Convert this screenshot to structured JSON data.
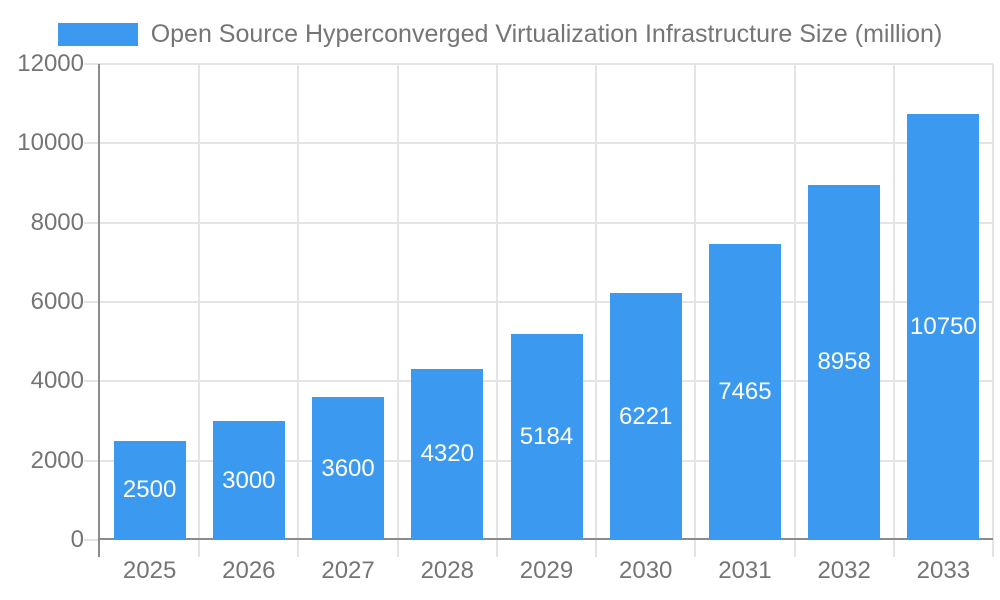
{
  "chart_data": {
    "type": "bar",
    "title": "Open Source Hyperconverged Virtualization Infrastructure Size (million)",
    "categories": [
      "2025",
      "2026",
      "2027",
      "2028",
      "2029",
      "2030",
      "2031",
      "2032",
      "2033"
    ],
    "values": [
      2500,
      3000,
      3600,
      4320,
      5184,
      6221,
      7465,
      8958,
      10750
    ],
    "xlabel": "",
    "ylabel": "",
    "ylim": [
      0,
      12000
    ],
    "yticks": [
      0,
      2000,
      4000,
      6000,
      8000,
      10000,
      12000
    ],
    "grid": true,
    "legend_position": "top",
    "bar_value_labels_inside": true,
    "colors": {
      "bar": "#3b99f0",
      "bar_label_text": "#ffffff",
      "axis_text": "#757575",
      "grid_line": "#e4e4e4",
      "axis_line": "#8b8b8b",
      "background": "#ffffff"
    }
  }
}
